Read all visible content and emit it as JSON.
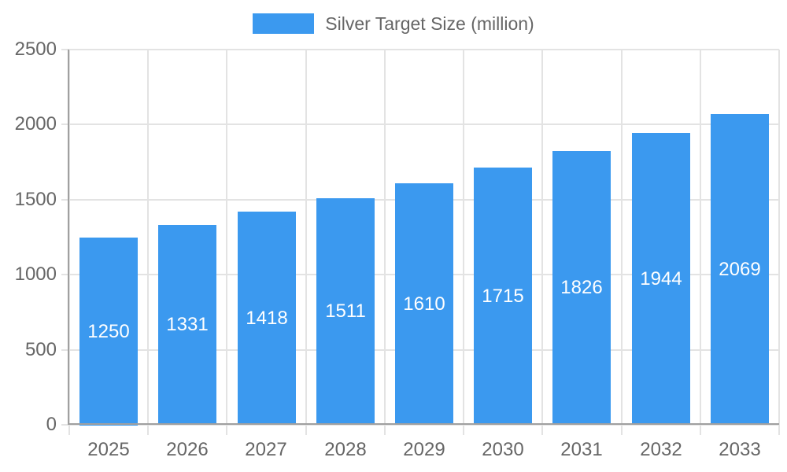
{
  "legend": {
    "label": "Silver Target Size (million)"
  },
  "colors": {
    "bar": "#3B99EF",
    "grid": "#e3e3e3",
    "axis": "#a0a0a0",
    "tick_label": "#666666",
    "value_label": "#ffffff",
    "background": "#ffffff"
  },
  "chart_data": {
    "type": "bar",
    "title": "Silver Target Size (million)",
    "legend_entries": [
      "Silver Target Size (million)"
    ],
    "legend_position": "top",
    "categories": [
      "2025",
      "2026",
      "2027",
      "2028",
      "2029",
      "2030",
      "2031",
      "2032",
      "2033"
    ],
    "values": [
      1250,
      1331,
      1418,
      1511,
      1610,
      1715,
      1826,
      1944,
      2069
    ],
    "value_labels": [
      "1250",
      "1331",
      "1418",
      "1511",
      "1610",
      "1715",
      "1826",
      "1944",
      "2069"
    ],
    "value_labels_position": "inside-center",
    "xlabel": "",
    "ylabel": "",
    "ylim": [
      0,
      2500
    ],
    "yticks": [
      0,
      500,
      1000,
      1500,
      2000,
      2500
    ],
    "grid": true
  }
}
